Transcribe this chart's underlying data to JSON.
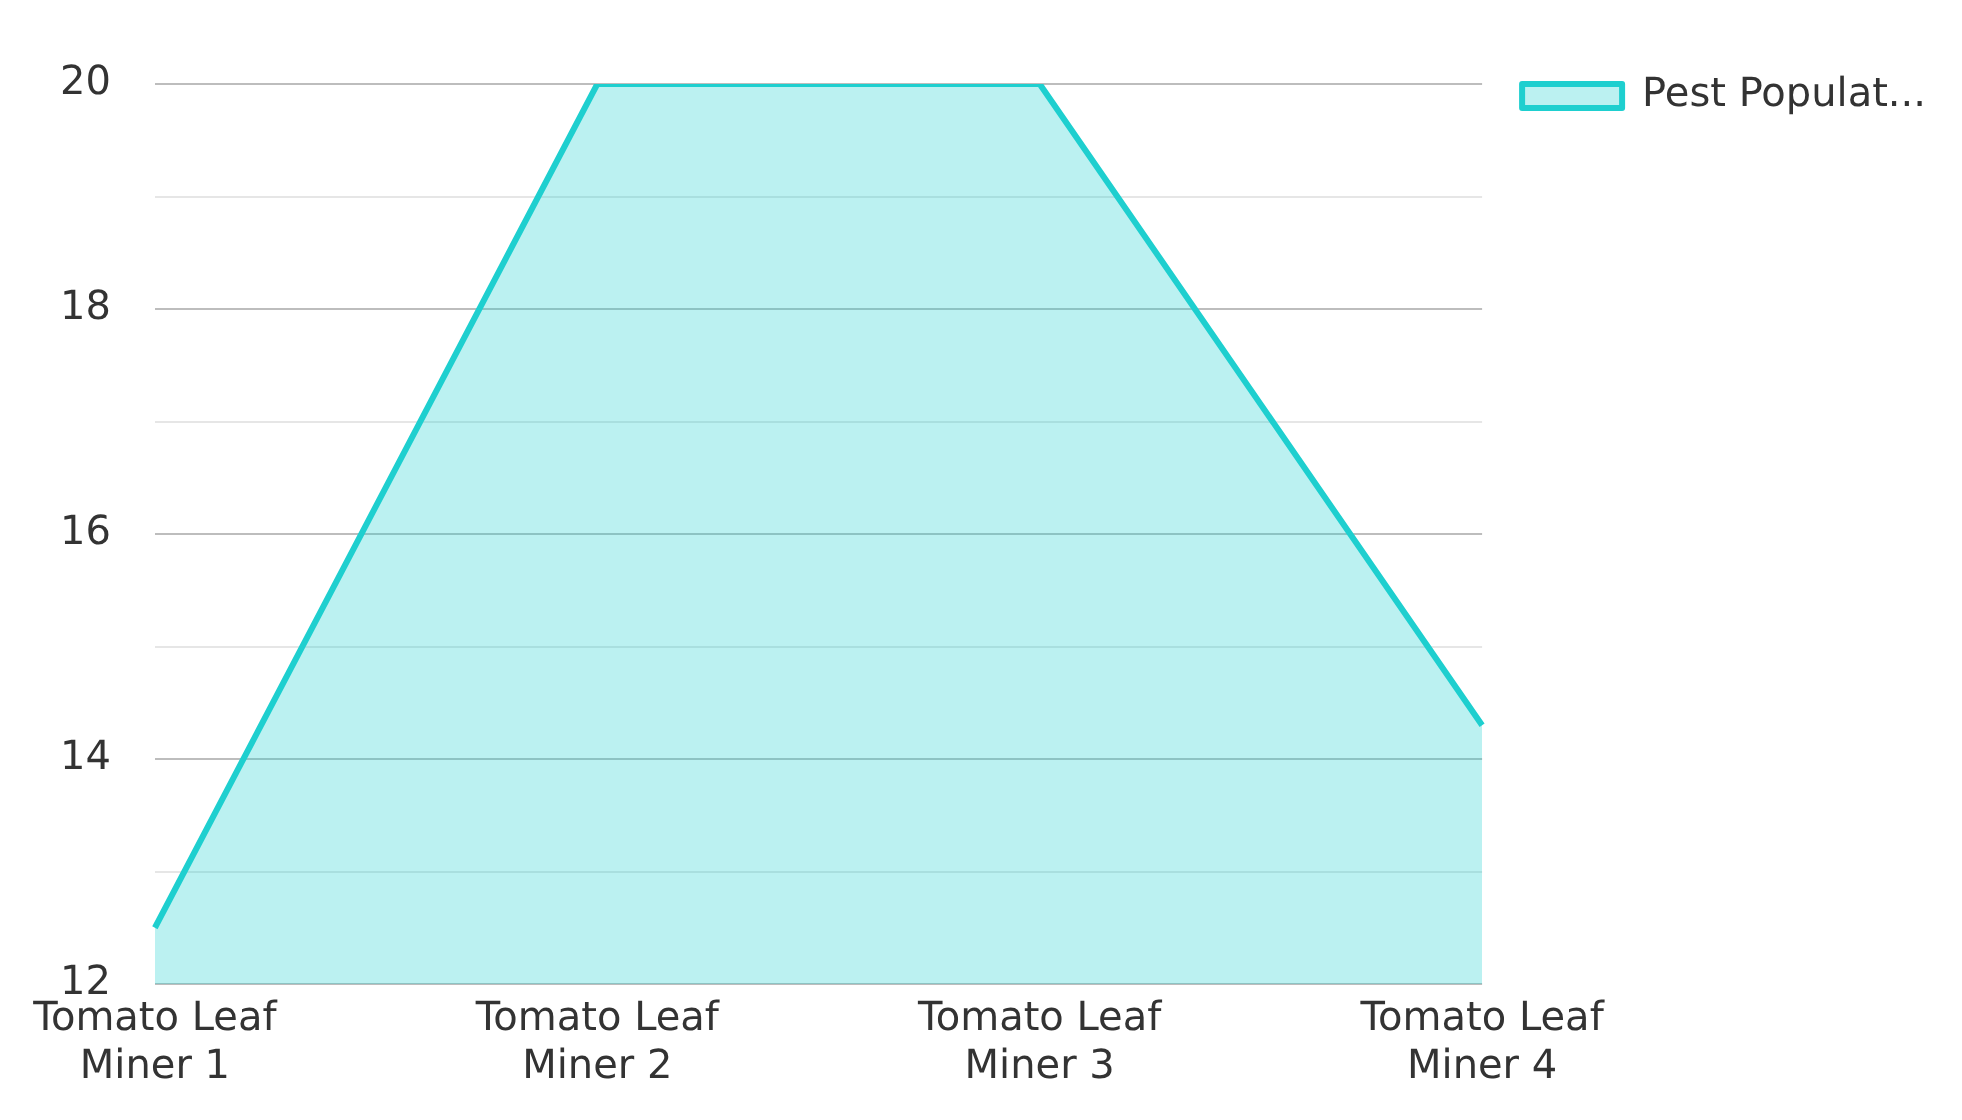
{
  "chart_data": {
    "type": "area",
    "categories": [
      "Tomato Leaf Miner 1",
      "Tomato Leaf Miner 2",
      "Tomato Leaf Miner 3",
      "Tomato Leaf Miner 4"
    ],
    "series": [
      {
        "name": "Pest Populat...",
        "color": "#1ecfcf",
        "values": [
          12.5,
          20,
          20,
          14.3
        ]
      }
    ],
    "ylim": [
      12,
      20
    ],
    "yticks": [
      12,
      {
        "value": 13,
        "label": null
      },
      14,
      {
        "value": 15,
        "label": null
      },
      16,
      {
        "value": 17,
        "label": null
      },
      18,
      {
        "value": 19,
        "label": null
      },
      20
    ],
    "grid": "y",
    "legend": "top right",
    "marker": "none",
    "line_style": "solid"
  }
}
